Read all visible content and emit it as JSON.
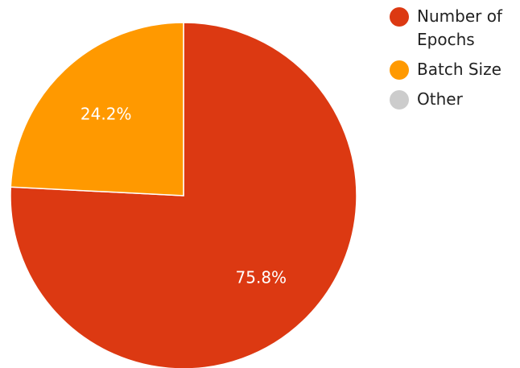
{
  "chart_data": {
    "type": "pie",
    "title": "",
    "slices": [
      {
        "label": "Number of Epochs",
        "value": 75.8,
        "display": "75.8%",
        "color": "#dc3912"
      },
      {
        "label": "Batch Size",
        "value": 24.2,
        "display": "24.2%",
        "color": "#ff9900"
      },
      {
        "label": "Other",
        "value": 0,
        "display": "",
        "color": "#cccccc"
      }
    ],
    "legend_position": "right",
    "start_angle": "top, clockwise"
  }
}
